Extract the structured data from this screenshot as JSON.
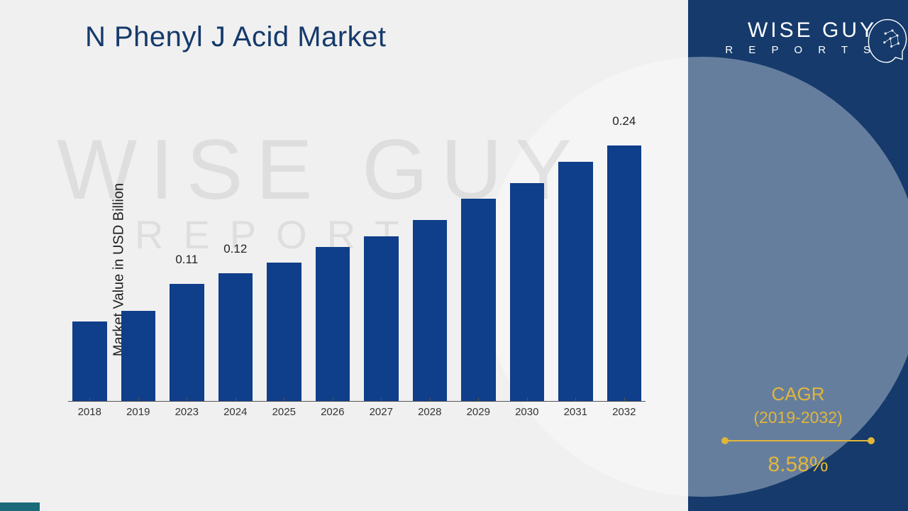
{
  "title": "N Phenyl J Acid Market",
  "logo": {
    "line1": "WISE GUY",
    "line2": "R E P O R T S"
  },
  "watermark": {
    "line1": "WISE GUY",
    "line2": "REPORTS"
  },
  "cagr": {
    "label": "CAGR",
    "range": "(2019-2032)",
    "value": "8.58%",
    "color": "#e0b63a"
  },
  "chart": {
    "type": "bar",
    "ylabel": "Market Value in USD Billion",
    "categories": [
      "2018",
      "2019",
      "2023",
      "2024",
      "2025",
      "2026",
      "2027",
      "2028",
      "2029",
      "2030",
      "2031",
      "2032"
    ],
    "values": [
      0.075,
      0.085,
      0.11,
      0.12,
      0.13,
      0.145,
      0.155,
      0.17,
      0.19,
      0.205,
      0.225,
      0.24
    ],
    "show_label": {
      "2": "0.11",
      "3": "0.12",
      "11": "0.24"
    },
    "ymax": 0.27,
    "bar_color": "#0f3e8a",
    "axis_color": "#555555",
    "background_color": "#f0f0f0",
    "side_panel_color": "#153a6b",
    "circle_color": "#ffffff",
    "tick_fontsize": 15,
    "label_fontsize": 20,
    "title_fontsize": 40,
    "title_color": "#153a6b"
  }
}
